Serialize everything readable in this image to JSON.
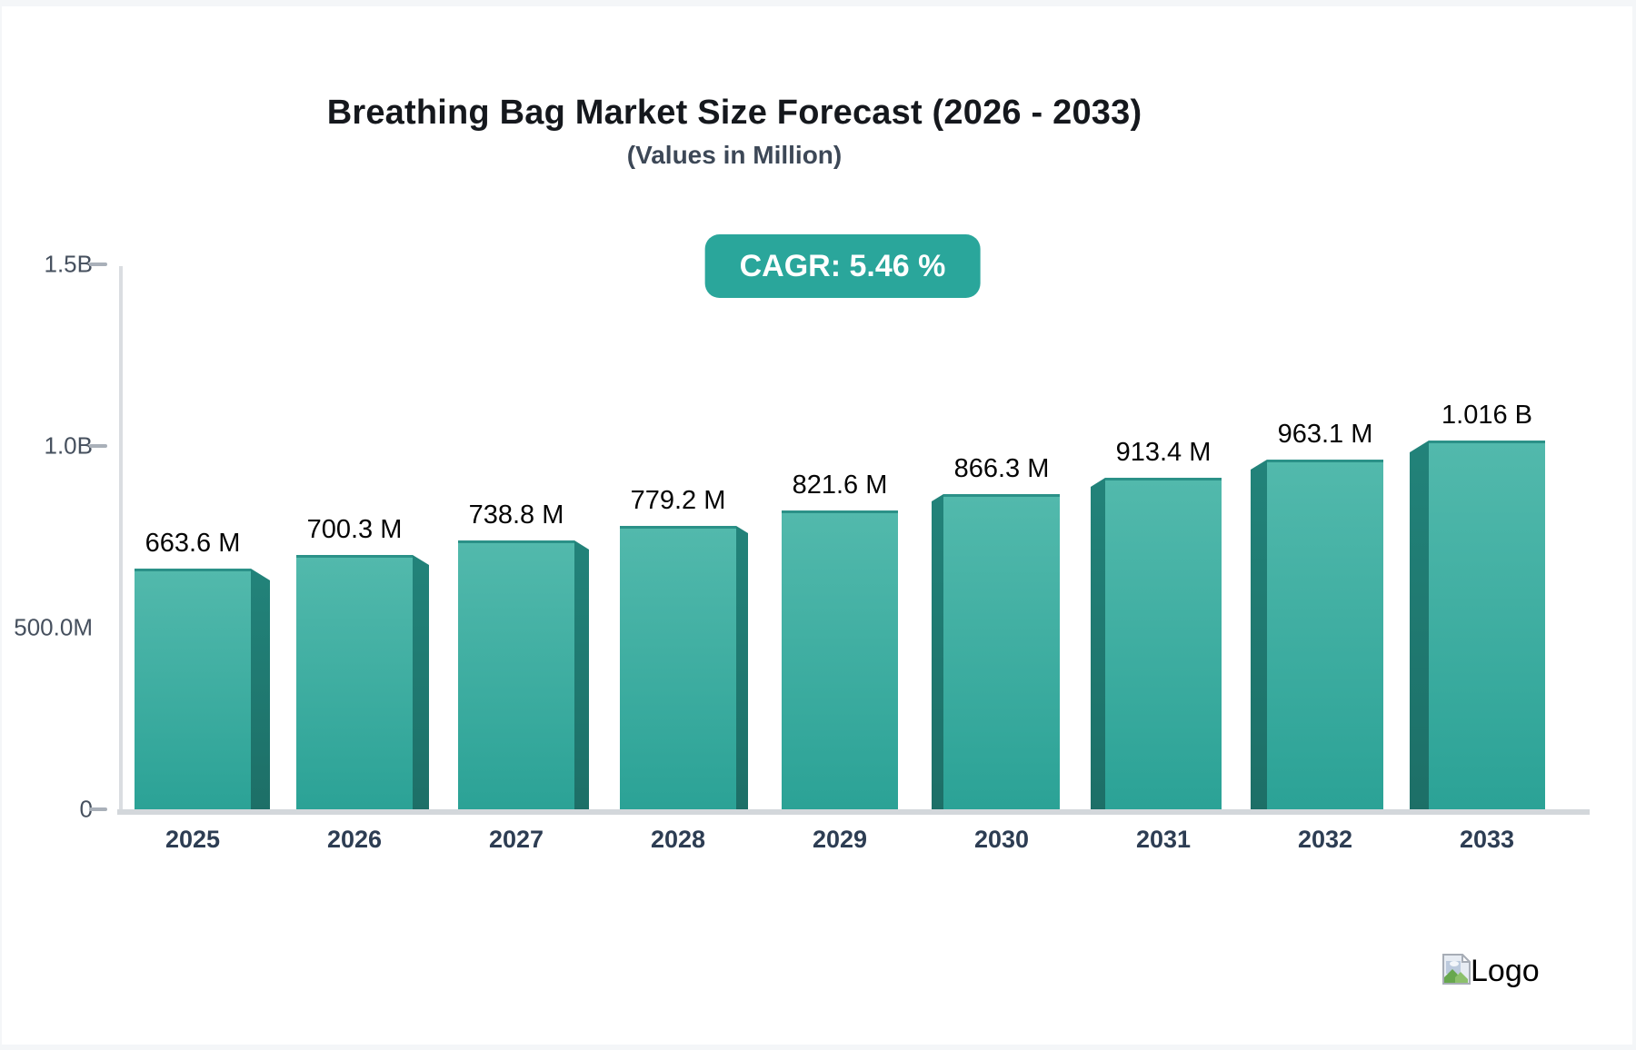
{
  "header": {
    "title": "Breathing Bag Market Size Forecast (2026 - 2033)",
    "subtitle": "(Values in Million)",
    "cagr_badge": "CAGR: 5.46 %"
  },
  "colors": {
    "accent_teal": "#2aa69b",
    "badge_bg": "#2aa69b",
    "badge_text": "#ffffff",
    "bar_face_top": "#52b9ac",
    "bar_face_bottom": "#2ba296",
    "bar_side": "#217a71",
    "bar_top_edge": "#2b9188",
    "axis_line": "#d8dbdf",
    "axis_label": "#46505e",
    "x_label": "#2d3d53",
    "value_label": "#050505"
  },
  "chart_data": {
    "type": "bar",
    "title": "Breathing Bag Market Size Forecast (2026 - 2033)",
    "subtitle": "(Values in Million)",
    "annotation": "CAGR: 5.46 %",
    "categories": [
      "2025",
      "2026",
      "2027",
      "2028",
      "2029",
      "2030",
      "2031",
      "2032",
      "2033"
    ],
    "values_millions": [
      663.6,
      700.3,
      738.8,
      779.2,
      821.6,
      866.3,
      913.4,
      963.1,
      1016
    ],
    "value_labels": [
      "663.6 M",
      "700.3 M",
      "738.8 M",
      "779.2 M",
      "821.6 M",
      "866.3 M",
      "913.4 M",
      "963.1 M",
      "1.016 B"
    ],
    "xlabel": "",
    "ylabel": "",
    "y_axis": {
      "range_millions": [
        0,
        1500
      ],
      "ticks": [
        {
          "label": "1.5B",
          "value_millions": 1500
        },
        {
          "label": "1.0B",
          "value_millions": 1000
        },
        {
          "label": "500.0M",
          "value_millions": 500
        },
        {
          "label": "0",
          "value_millions": 0
        }
      ]
    },
    "grid": false,
    "legend": null
  },
  "logo": {
    "alt_text": "Logo",
    "icon": "broken-image-icon"
  }
}
